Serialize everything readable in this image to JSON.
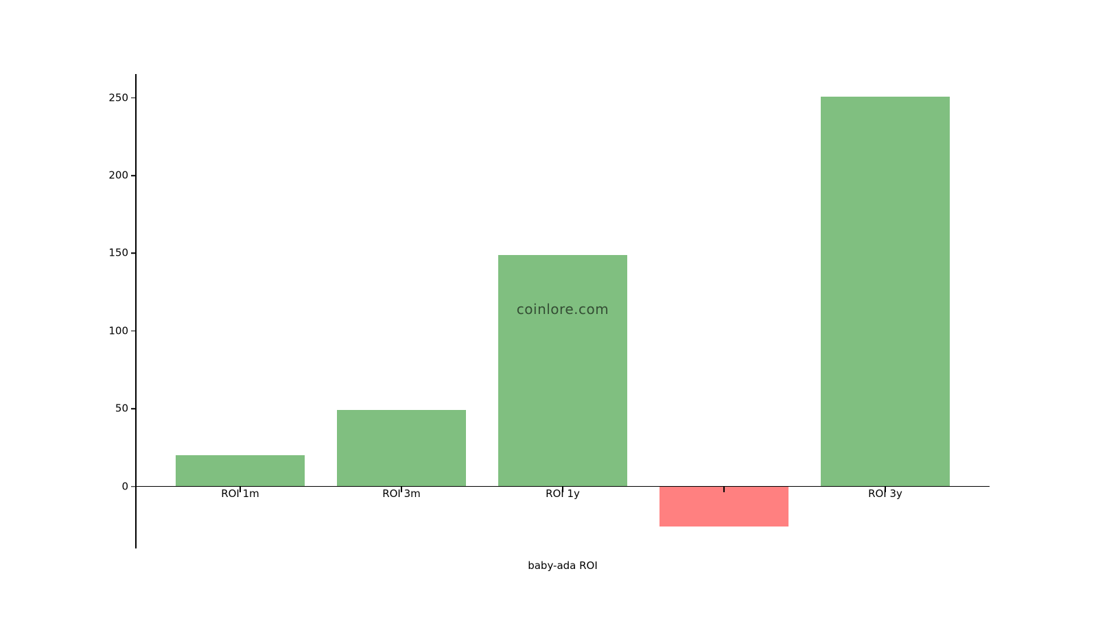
{
  "chart_data": {
    "type": "bar",
    "title": "",
    "xlabel": "baby-ada ROI",
    "ylabel": "",
    "watermark": "coinlore.com",
    "categories": [
      "ROI 1m",
      "ROI 3m",
      "ROI 1y",
      "",
      "ROI 3y"
    ],
    "values": [
      20,
      49,
      149,
      -26,
      251
    ],
    "bar_colors": [
      "#80bf80",
      "#80bf80",
      "#80bf80",
      "#ff8080",
      "#80bf80"
    ],
    "y_ticks": [
      0,
      50,
      100,
      150,
      200,
      250
    ],
    "ylim": [
      -40,
      265
    ],
    "grid": false,
    "legend_position": "none",
    "notes": "label of negative bar is hidden behind the bar",
    "colors": {
      "positive_bar": "#80bf80",
      "negative_bar": "#ff8080",
      "axis": "#000000",
      "tick_text": "#000000",
      "watermark_text": "rgba(0,0,0,0.6)"
    }
  }
}
